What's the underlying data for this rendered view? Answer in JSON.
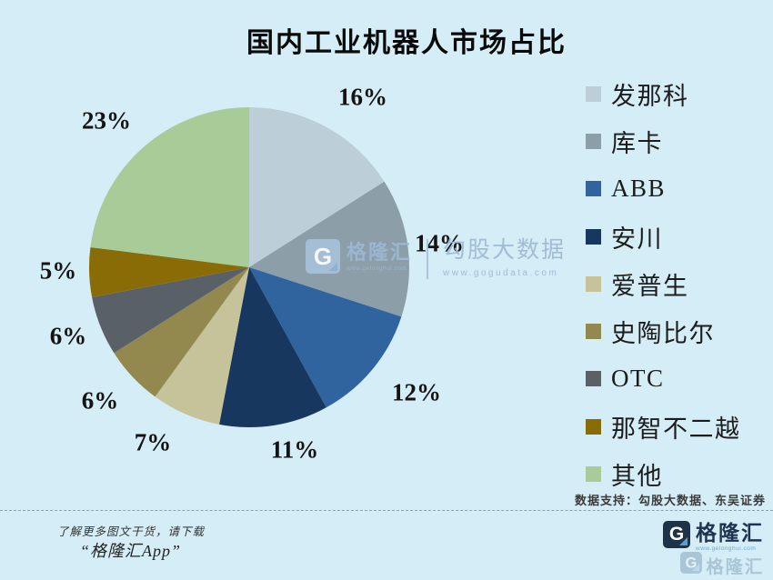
{
  "title": "国内工业机器人市场占比",
  "chart_data": {
    "type": "pie",
    "title": "国内工业机器人市场占比",
    "start_angle_deg": 0,
    "direction": "clockwise",
    "legend_position": "right",
    "value_suffix": "%",
    "slices": [
      {
        "label": "发那科",
        "value": 16,
        "color": "#bccfd9"
      },
      {
        "label": "库卡",
        "value": 14,
        "color": "#8c9ea8"
      },
      {
        "label": "ABB",
        "value": 12,
        "color": "#30649e"
      },
      {
        "label": "安川",
        "value": 11,
        "color": "#17375e"
      },
      {
        "label": "爱普生",
        "value": 7,
        "color": "#c6c39a"
      },
      {
        "label": "史陶比尔",
        "value": 6,
        "color": "#93894f"
      },
      {
        "label": "OTC",
        "value": 6,
        "color": "#5a6068"
      },
      {
        "label": "那智不二越",
        "value": 5,
        "color": "#8a6c06"
      },
      {
        "label": "其他",
        "value": 23,
        "color": "#a8cc97"
      }
    ]
  },
  "watermark_center": {
    "brand": "格隆汇",
    "brand_url": "www.gelonghui.com",
    "product": "勾股大数据",
    "product_url": "www.gogudata.com",
    "logo_letter": "G"
  },
  "footer": {
    "data_support": "数据支持：勾股大数据、东吴证券",
    "promo_line1": "了解更多图文干货，请下载",
    "promo_line2": "“格隆汇App”",
    "brand": "格隆汇",
    "brand_url": "www.gelonghui.com",
    "logo_letter": "G"
  },
  "colors": {
    "background": "#d5edf6",
    "watermark": "#9db9d4",
    "logo_navy": "#1f3348",
    "logo_blue": "#5ba0d0"
  }
}
